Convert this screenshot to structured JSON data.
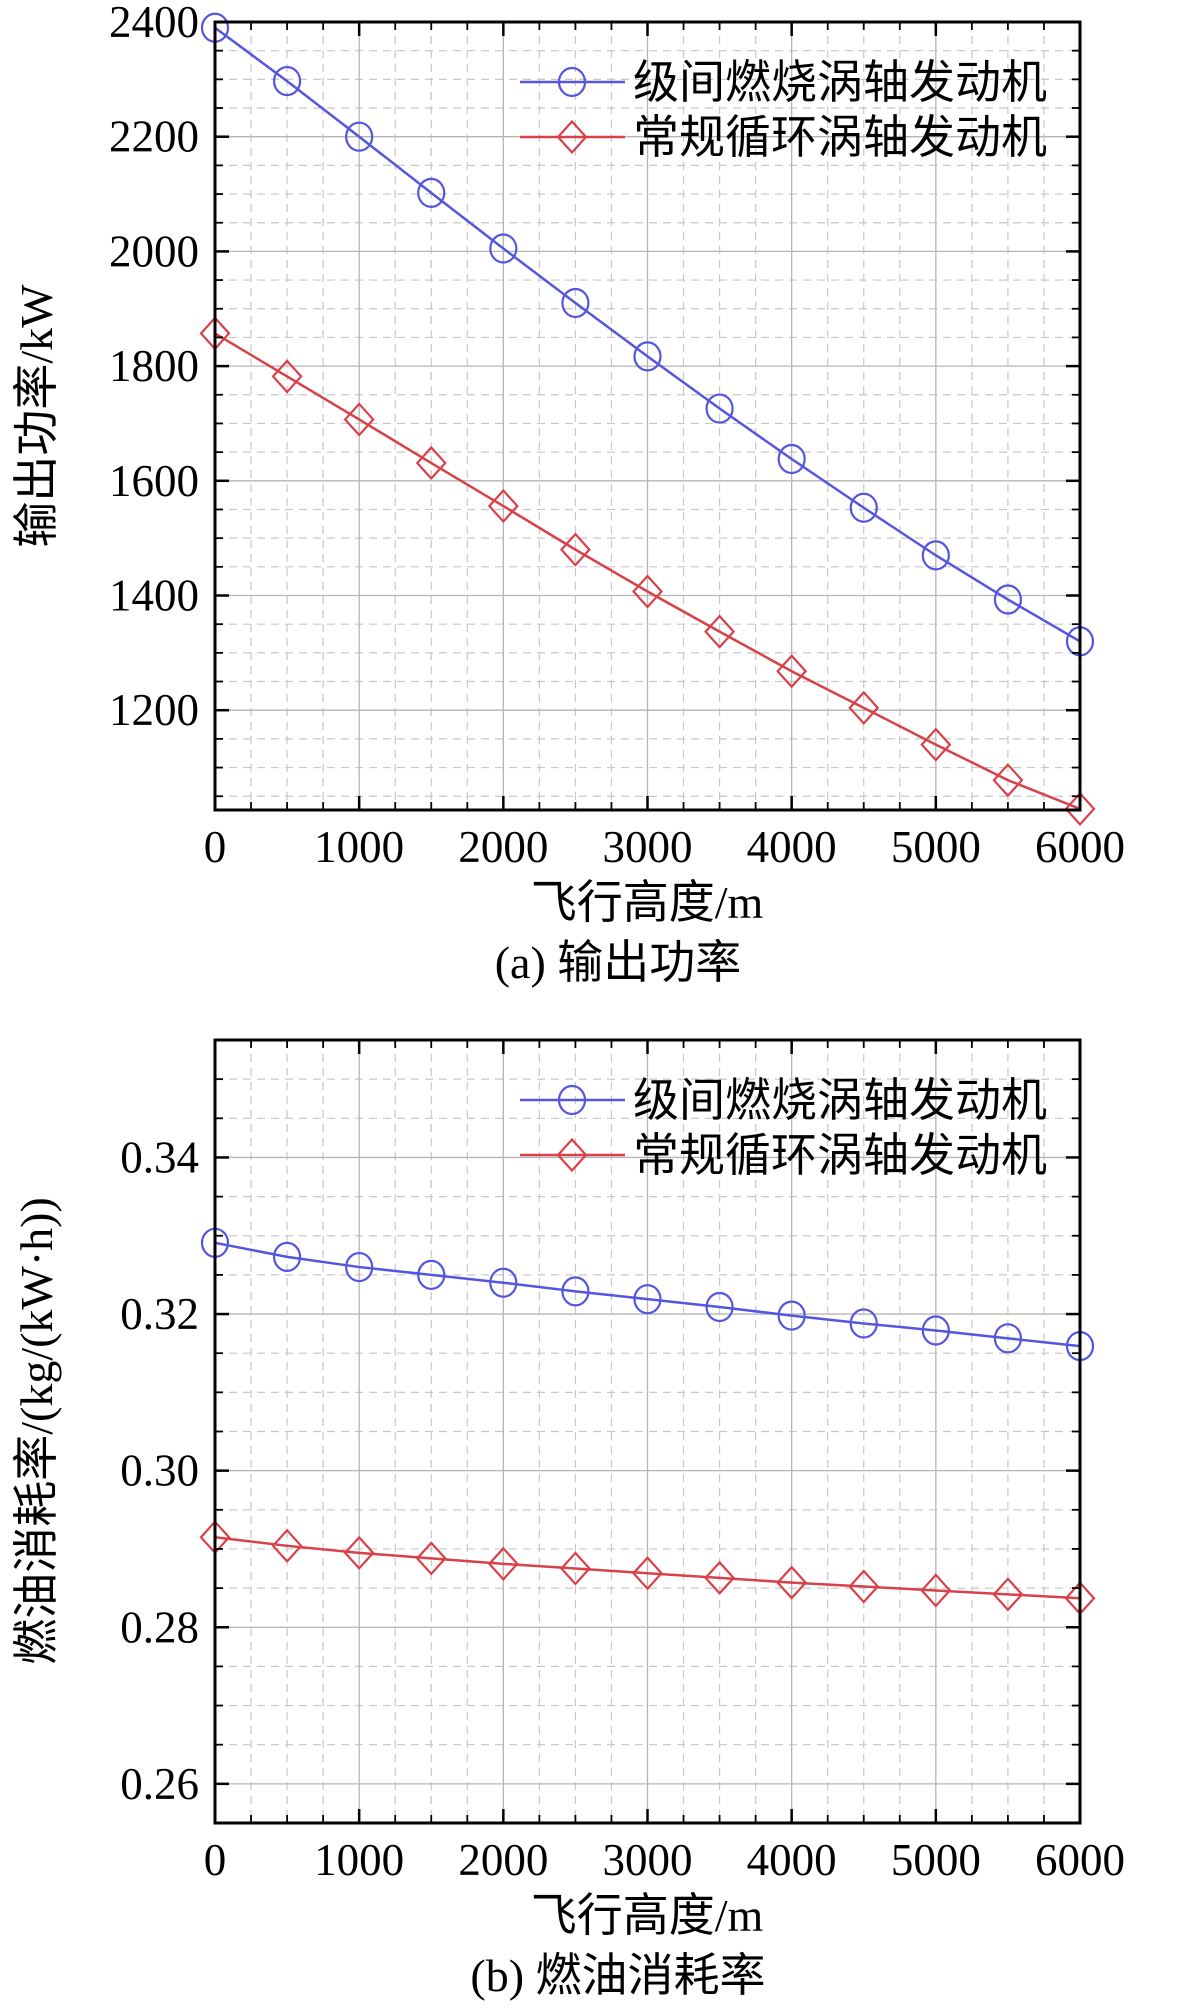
{
  "page": {
    "background": "#ffffff",
    "figure_kind": "dual-line-chart"
  },
  "chart_data": [
    {
      "type": "line",
      "caption": "(a) 输出功率",
      "xlabel": "飞行高度/m",
      "ylabel": "输出功率/kW",
      "x": [
        0,
        500,
        1000,
        1500,
        2000,
        2500,
        3000,
        3500,
        4000,
        4500,
        5000,
        5500,
        6000
      ],
      "xlim": [
        0,
        6000
      ],
      "ylim": [
        1026,
        2400
      ],
      "xticks": {
        "values": [
          0,
          1000,
          2000,
          3000,
          4000,
          5000,
          6000
        ],
        "labels": [
          "0",
          "1000",
          "2000",
          "3000",
          "4000",
          "5000",
          "6000"
        ],
        "minor_step": 250
      },
      "yticks": {
        "values": [
          1200,
          1400,
          1600,
          1800,
          2000,
          2200,
          2400
        ],
        "labels": [
          "1200",
          "1400",
          "1600",
          "1800",
          "2000",
          "2200",
          "2400"
        ],
        "minor_step": 50
      },
      "grid": {
        "major": "solid",
        "minor": "dashed"
      },
      "legend": {
        "position": "top-right"
      },
      "series": [
        {
          "name": "级间燃烧涡轴发动机",
          "color": "#5456dd",
          "marker": "circle",
          "values": [
            2390,
            2297,
            2200,
            2102,
            2005,
            1910,
            1817,
            1726,
            1638,
            1553,
            1470,
            1393,
            1320
          ]
        },
        {
          "name": "常规循环涡轴发动机",
          "color": "#d8414a",
          "marker": "diamond",
          "values": [
            1857,
            1782,
            1707,
            1631,
            1556,
            1480,
            1407,
            1337,
            1268,
            1204,
            1140,
            1078,
            1028
          ]
        }
      ]
    },
    {
      "type": "line",
      "caption": "(b) 燃油消耗率",
      "xlabel": "飞行高度/m",
      "ylabel": "燃油消耗率/(kg/(kW·h))",
      "x": [
        0,
        500,
        1000,
        1500,
        2000,
        2500,
        3000,
        3500,
        4000,
        4500,
        5000,
        5500,
        6000
      ],
      "xlim": [
        0,
        6000
      ],
      "ylim": [
        0.255,
        0.355
      ],
      "xticks": {
        "values": [
          0,
          1000,
          2000,
          3000,
          4000,
          5000,
          6000
        ],
        "labels": [
          "0",
          "1000",
          "2000",
          "3000",
          "4000",
          "5000",
          "6000"
        ],
        "minor_step": 250
      },
      "yticks": {
        "values": [
          0.26,
          0.28,
          0.3,
          0.32,
          0.34
        ],
        "labels": [
          "0.26",
          "0.28",
          "0.30",
          "0.32",
          "0.34"
        ],
        "minor_step": 0.005
      },
      "grid": {
        "major": "solid",
        "minor": "dashed"
      },
      "legend": {
        "position": "top-right"
      },
      "series": [
        {
          "name": "级间燃烧涡轴发动机",
          "color": "#5456dd",
          "marker": "circle",
          "values": [
            0.3291,
            0.3273,
            0.326,
            0.325,
            0.324,
            0.3229,
            0.3219,
            0.3209,
            0.3198,
            0.3188,
            0.3179,
            0.3169,
            0.3159
          ]
        },
        {
          "name": "常规循环涡轴发动机",
          "color": "#d8414a",
          "marker": "diamond",
          "values": [
            0.2915,
            0.2904,
            0.2895,
            0.2888,
            0.2881,
            0.2875,
            0.2869,
            0.2863,
            0.2857,
            0.2852,
            0.2847,
            0.2842,
            0.2837
          ]
        }
      ]
    }
  ],
  "style": {
    "frame_color": "#000000",
    "major_grid_color": "#b5b5b5",
    "minor_grid_color": "#c8c8c8"
  }
}
